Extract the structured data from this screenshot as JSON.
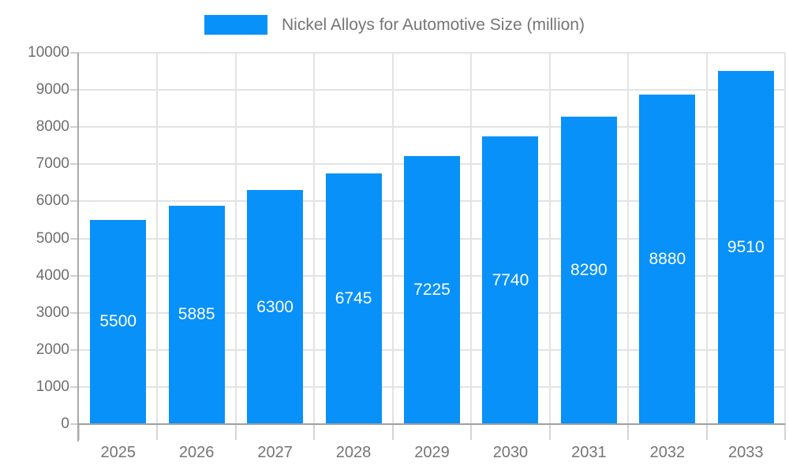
{
  "legend": {
    "label": "Nickel Alloys for Automotive Size (million)"
  },
  "colors": {
    "bar": "#0891f9",
    "grid": "#e3e3e3",
    "axis": "#a8a8a8",
    "tick": "#d0d0d0",
    "axis_label_text": "#6e6e6e",
    "legend_text": "#757575",
    "bar_label_text": "#ffffff"
  },
  "chart_data": {
    "type": "bar",
    "title": "Nickel Alloys for Automotive Size (million)",
    "categories": [
      "2025",
      "2026",
      "2027",
      "2028",
      "2029",
      "2030",
      "2031",
      "2032",
      "2033"
    ],
    "values": [
      5500,
      5885,
      6300,
      6745,
      7225,
      7740,
      8290,
      8880,
      9510
    ],
    "xlabel": "",
    "ylabel": "",
    "ylim": [
      0,
      10000
    ],
    "ytick_step": 1000,
    "grid": true,
    "legend_position": "top",
    "bar_labels_inside": true
  }
}
